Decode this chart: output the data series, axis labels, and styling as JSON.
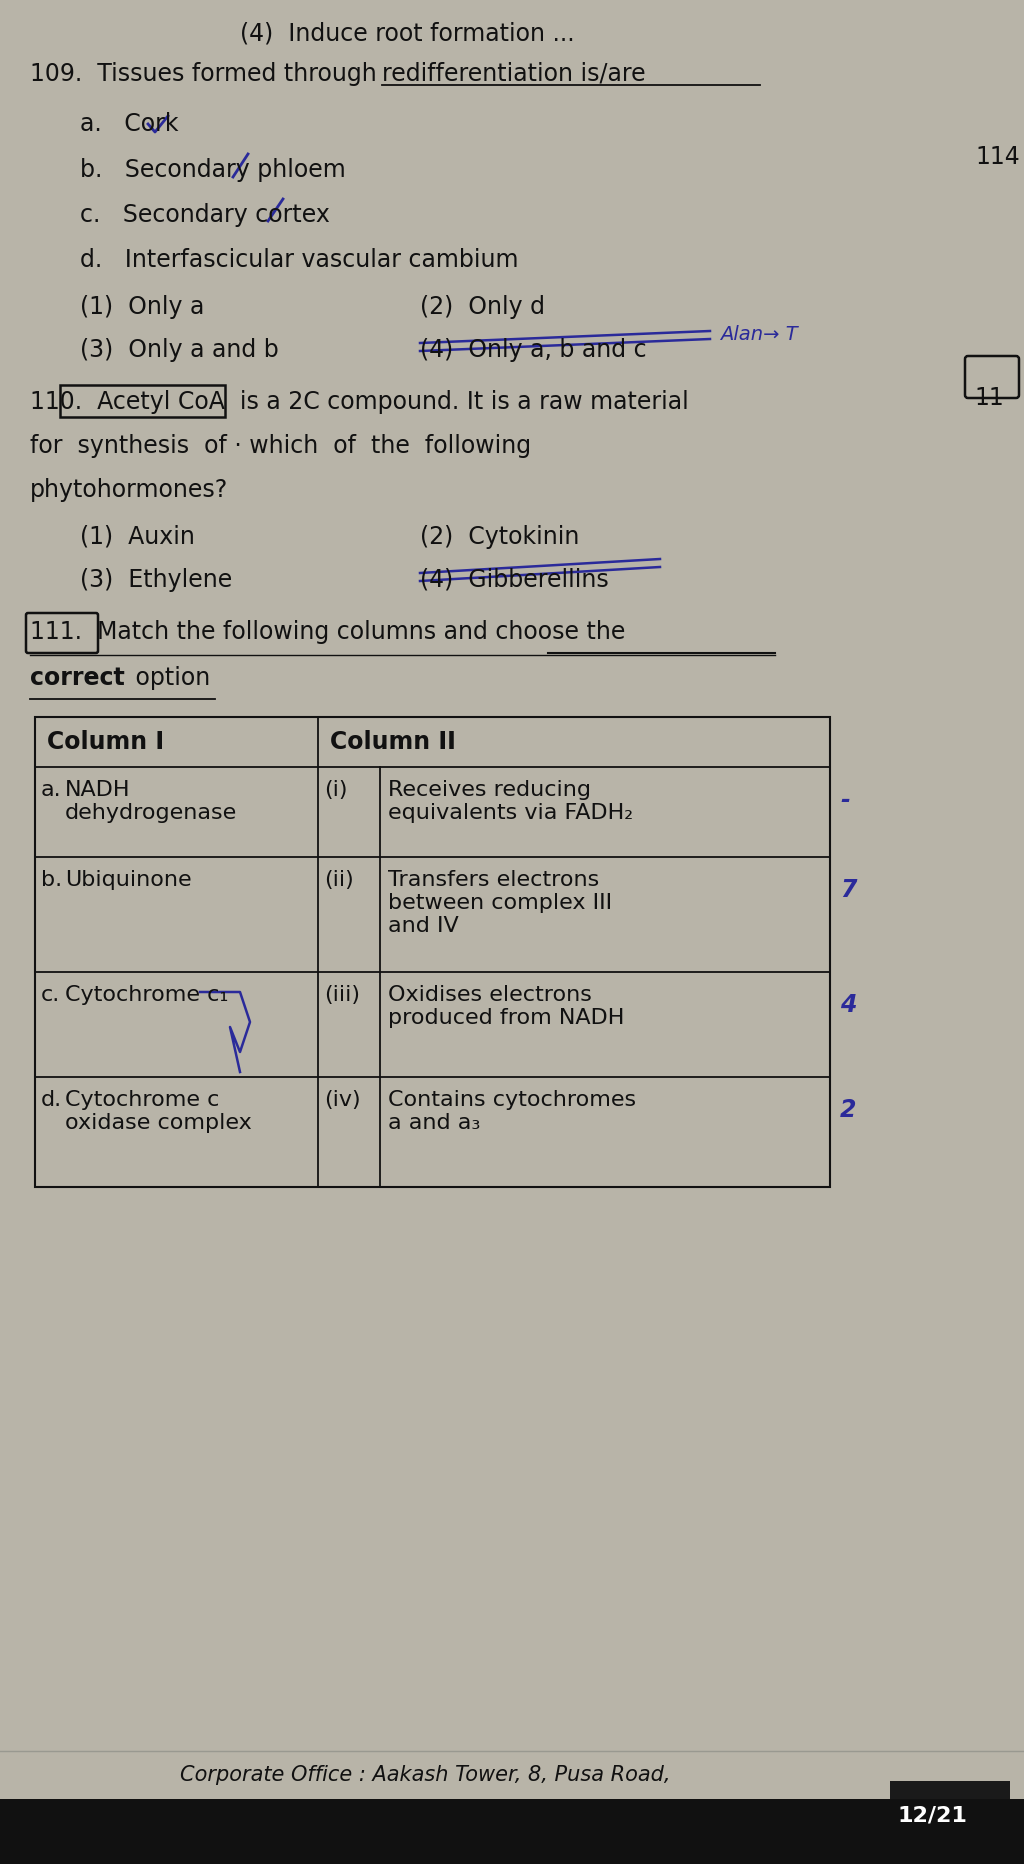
{
  "bg_color": "#b8b4a8",
  "paper_color": "#ccc8bc",
  "text_color": "#111111",
  "line1": "(4)  Induce root formation ...",
  "q109_part1": "109.  Tissues formed through ",
  "q109_part2": "redifferentiation is/are",
  "q109_opts": [
    "a.   Cork",
    "b.   Secondary phloem",
    "c.   Secondary cortex",
    "d.   Interfascicular vascular cambium"
  ],
  "ans1_col1": "(1)  Only a",
  "ans1_col2": "(2)  Only d",
  "ans2_col1": "(3)  Only a and b",
  "ans2_col2": "(4)  Only a, b and c",
  "handwritten": "Alan→ T",
  "side_num1": "114",
  "q110_part1": "110.  Acetyl CoA  is a 2C compound. It is a raw material",
  "q110_part2": "for  synthesis  of · which  of  the  following",
  "q110_part3": "phytohormones?",
  "q110_opts_col1": [
    "(1)  Auxin",
    "(3)  Ethylene"
  ],
  "q110_opts_col2": [
    "(2)  Cytokinin",
    "(4)  Gibberellins"
  ],
  "side_num2": "11",
  "q111_part1": "111.  Match the following columns and choose the",
  "q111_part2": "correct",
  "q111_part3": " option",
  "table_col1_header": "Column I",
  "table_col2_header": "Column II",
  "table_rows": [
    [
      "a.",
      "NADH\ndehydrogenase",
      "(i)",
      "Receives reducing\nequivalents via FADH₂"
    ],
    [
      "b.",
      "Ubiquinone",
      "(ii)",
      "Transfers electrons\nbetween complex III\nand IV"
    ],
    [
      "c.",
      "Cytochrome c₁",
      "(iii)",
      "Oxidises electrons\nproduced from NADH"
    ],
    [
      "d.",
      "Cytochrome c\noxidase complex",
      "(iv)",
      "Contains cytochromes\na and a₃"
    ]
  ],
  "footer": "Corporate Office : Aakash Tower, 8, Pusa Road,",
  "page_num": "12/21",
  "ink_color": "#2a2a9a",
  "right_marks": [
    "-",
    "7",
    "4",
    "2"
  ]
}
